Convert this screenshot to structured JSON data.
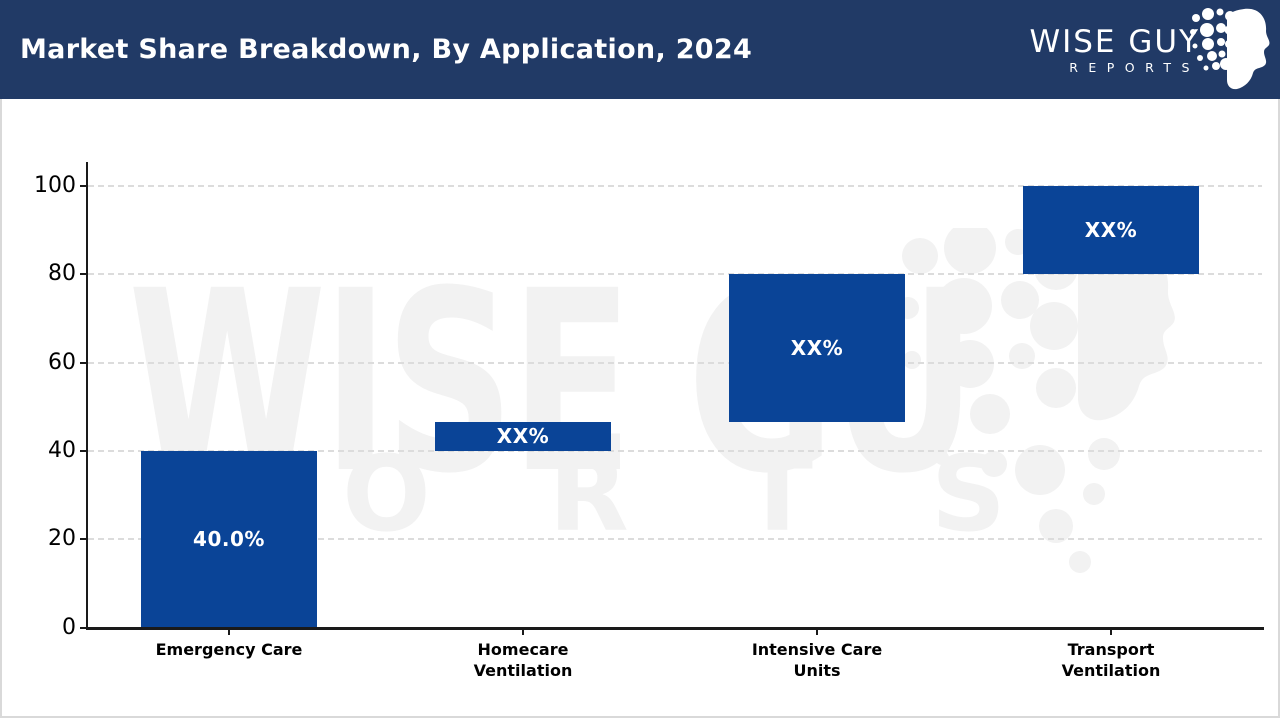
{
  "header": {
    "title": "Market Share Breakdown, By Application, 2024",
    "logo": {
      "line1": "WISE GUY",
      "line2": "REPORTS"
    }
  },
  "watermark": {
    "line1": "WISE GU",
    "line2": "PORTS"
  },
  "colors": {
    "header_bg": "#213a66",
    "bar": "#0a4497",
    "grid": "#dcdcdc",
    "axis": "#1a1a1a",
    "bar_label_text": "#ffffff",
    "watermark": "#f2f2f2"
  },
  "chart_data": {
    "type": "bar",
    "subtype": "waterfall",
    "title": "Market Share Breakdown, By Application, 2024",
    "categories": [
      "Emergency Care",
      "Homecare Ventilation",
      "Intensive Care Units",
      "Transport Ventilation"
    ],
    "category_lines": [
      [
        "Emergency Care"
      ],
      [
        "Homecare",
        "Ventilation"
      ],
      [
        "Intensive Care",
        "Units"
      ],
      [
        "Transport",
        "Ventilation"
      ]
    ],
    "segments": [
      [
        0,
        40
      ],
      [
        40,
        46.6
      ],
      [
        46.6,
        80
      ],
      [
        80,
        100
      ]
    ],
    "bar_labels": [
      "40.0%",
      "XX%",
      "XX%",
      "XX%"
    ],
    "yticks": [
      0,
      20,
      40,
      60,
      80,
      100
    ],
    "ylim": [
      0,
      106
    ],
    "grid": "dashed-horizontal",
    "legend": "none"
  }
}
